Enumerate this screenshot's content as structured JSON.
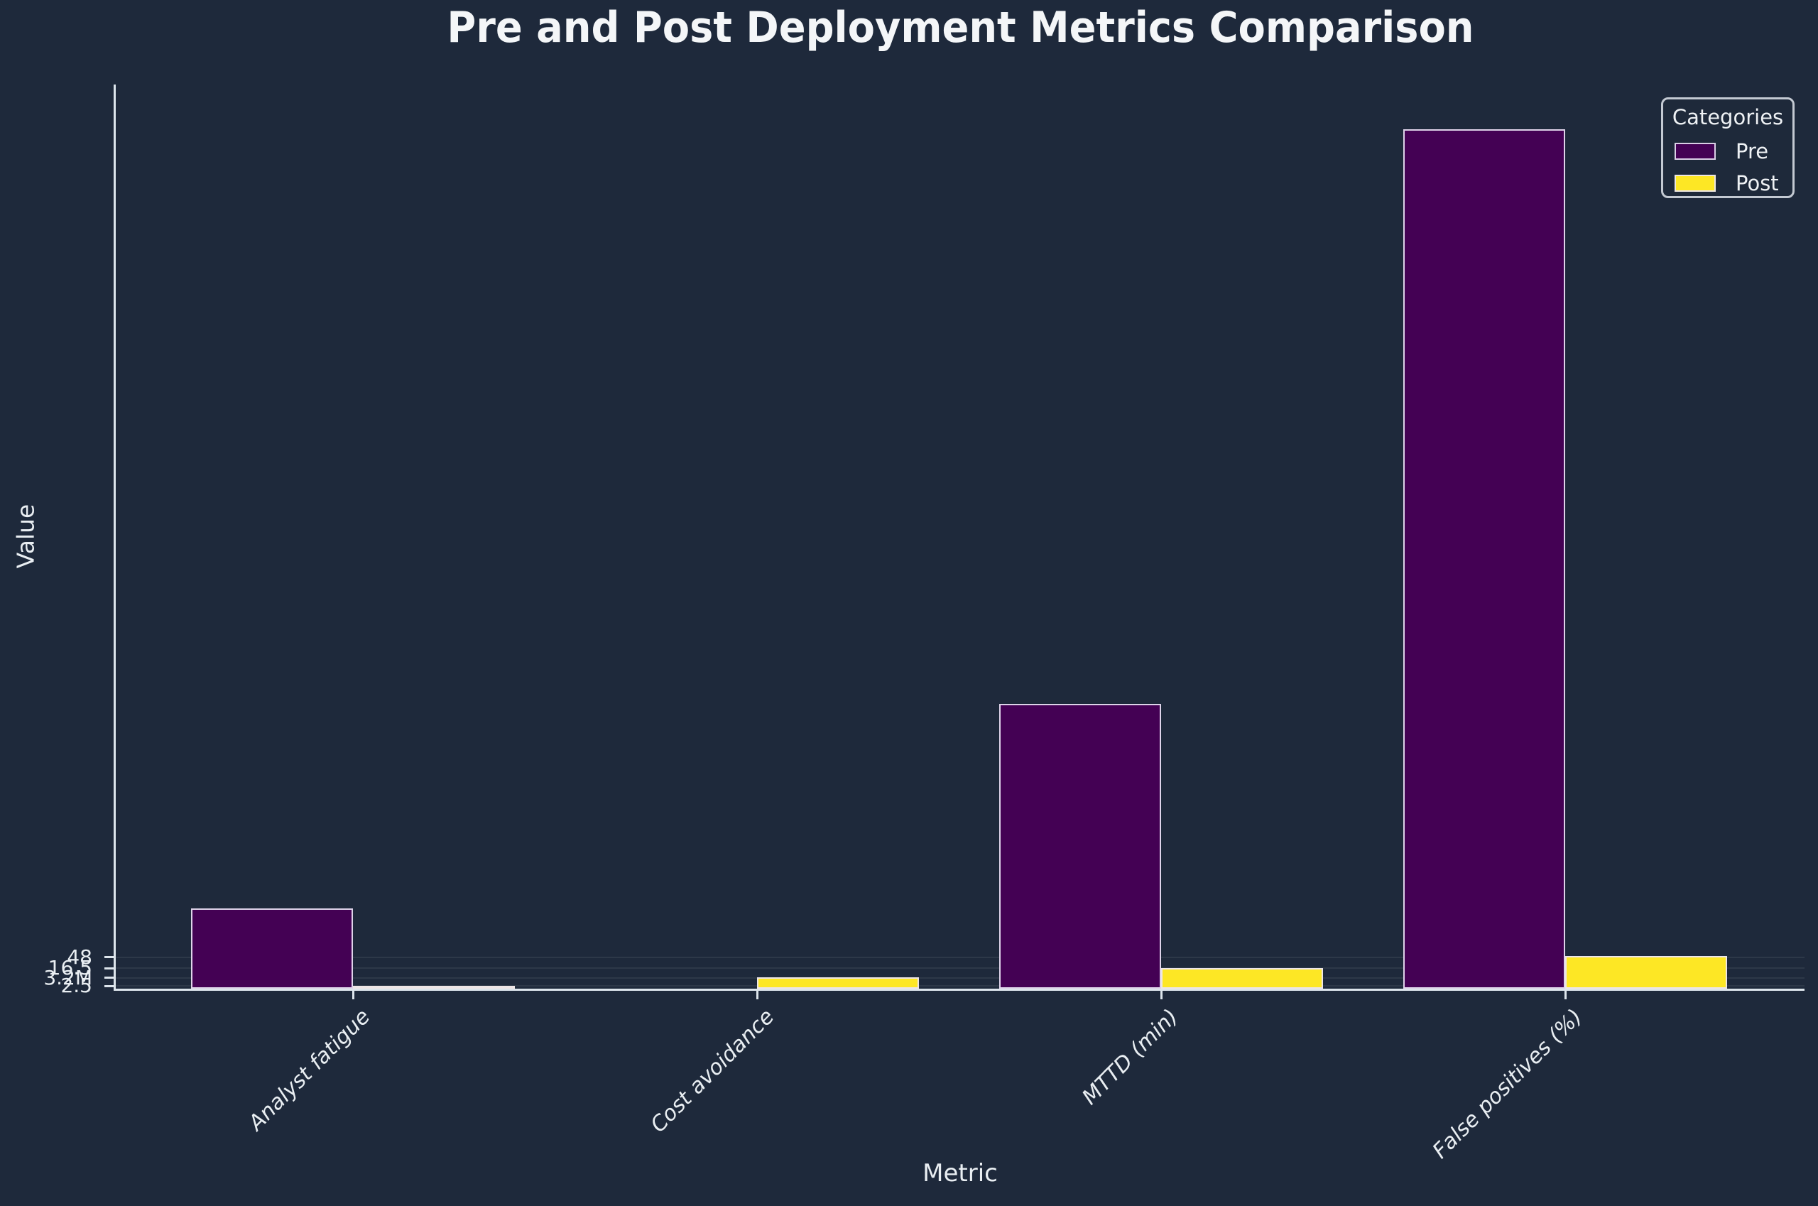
{
  "chart_data": {
    "type": "bar",
    "title": "Pre and Post Deployment Metrics Comparison",
    "xlabel": "Metric",
    "ylabel": "Value",
    "legend_title": "Categories",
    "legend_position": "upper right",
    "categories": [
      "Analyst fatigue",
      "Cost avoidance",
      "MTTD (min)",
      "False positives (%)"
    ],
    "series": [
      {
        "name": "Pre",
        "color": "#440154",
        "values": [
          118,
          0,
          418,
          1262
        ]
      },
      {
        "name": "Post",
        "color": "#FDE725",
        "values": [
          2.5,
          16.5,
          30,
          48
        ]
      }
    ],
    "ylim": [
      0,
      1328
    ],
    "yticks": [
      {
        "label": "48",
        "pos": 46
      },
      {
        "label": "16.5",
        "pos": 30
      },
      {
        "label": "3.2M",
        "pos": 16
      },
      {
        "label": "2.5",
        "pos": 4
      }
    ],
    "grid": "faint horizontal lines at y tick positions",
    "notes": "y tick labels are clustered and overlap near the axis bottom; bar edges are light lavender"
  }
}
